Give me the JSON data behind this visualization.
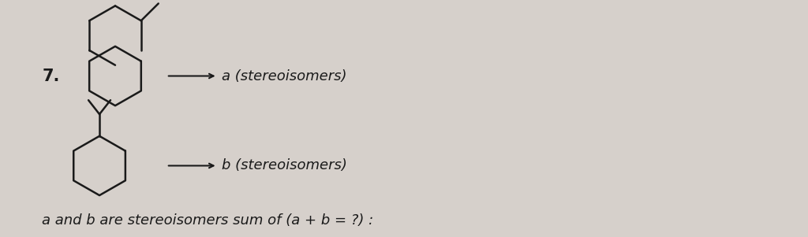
{
  "background_color": "#d6d0cb",
  "title_number": "7.",
  "label_a": "a (stereoisomers)",
  "label_b": "b (stereoisomers)",
  "bottom_text": "a and b are stereoisomers sum of (a + b = ?) :",
  "text_color": "#1a1a1a",
  "line_color": "#1a1a1a",
  "font_size_label": 13,
  "font_size_bottom": 13,
  "font_size_number": 15
}
